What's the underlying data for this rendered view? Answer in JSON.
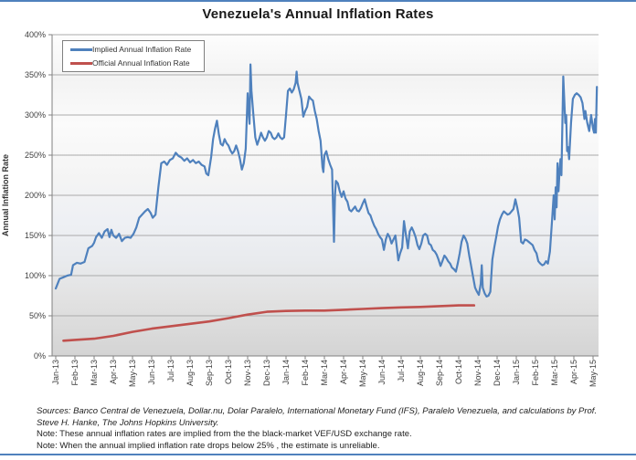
{
  "page": {
    "title": "Venezuela's Annual Inflation Rates"
  },
  "legend": {
    "items": [
      {
        "label": "Implied Annual Inflation Rate",
        "color": "#4f81bd"
      },
      {
        "label": "Official Annual Inflation Rate",
        "color": "#c0504d"
      }
    ]
  },
  "notes": {
    "sources": "Sources: Banco Central de Venezuela, Dollar.nu, Dolar Paralelo, International Monetary Fund (IFS), Paralelo Venezuela, and calculations by Prof. Steve H. Hanke, The Johns Hopkins University.",
    "note1": "Note: These annual inflation rates are implied from the the black-market VEF/USD exchange rate.",
    "note2": "Note: When the annual implied inflation rate drops below 25% , the estimate is unreliable."
  },
  "chart_data": {
    "type": "line",
    "title": "Venezuela's Annual Inflation Rates",
    "xlabel": "",
    "ylabel": "Annual Inflation Rate",
    "ylim": [
      0,
      400
    ],
    "yticks": [
      0,
      50,
      100,
      150,
      200,
      250,
      300,
      350,
      400
    ],
    "ytick_suffix": "%",
    "grid": "horizontal",
    "legend_position": "top-left-inside",
    "categories": [
      "Jan-13",
      "Feb-13",
      "Mar-13",
      "Apr-13",
      "May-13",
      "Jun-13",
      "Jul-13",
      "Aug-13",
      "Sep-13",
      "Oct-13",
      "Nov-13",
      "Dec-13",
      "Jan-14",
      "Feb-14",
      "Mar-14",
      "Apr-14",
      "May-14",
      "Jun-14",
      "Jul-14",
      "Aug-14",
      "Sep-14",
      "Oct-14",
      "Nov-14",
      "Dec-14",
      "Jan-15",
      "Feb-15",
      "Mar-15",
      "Apr-15",
      "May-15"
    ],
    "x_unit": "fractional months since Jan-13",
    "series": [
      {
        "name": "Implied Annual Inflation Rate",
        "color": "#4f81bd",
        "width": 2.2,
        "points": [
          [
            0,
            84
          ],
          [
            0.1,
            90
          ],
          [
            0.2,
            96
          ],
          [
            0.4,
            98
          ],
          [
            0.6,
            100
          ],
          [
            0.8,
            101
          ],
          [
            0.9,
            113
          ],
          [
            1.1,
            116
          ],
          [
            1.3,
            115
          ],
          [
            1.5,
            117
          ],
          [
            1.7,
            134
          ],
          [
            1.9,
            137
          ],
          [
            2.0,
            141
          ],
          [
            2.1,
            148
          ],
          [
            2.25,
            153
          ],
          [
            2.4,
            147
          ],
          [
            2.55,
            155
          ],
          [
            2.7,
            158
          ],
          [
            2.8,
            148
          ],
          [
            2.9,
            157
          ],
          [
            3.0,
            150
          ],
          [
            3.15,
            147
          ],
          [
            3.3,
            152
          ],
          [
            3.45,
            143
          ],
          [
            3.6,
            147
          ],
          [
            3.75,
            148
          ],
          [
            3.9,
            147
          ],
          [
            4.05,
            152
          ],
          [
            4.2,
            160
          ],
          [
            4.35,
            172
          ],
          [
            4.5,
            176
          ],
          [
            4.65,
            180
          ],
          [
            4.8,
            183
          ],
          [
            4.95,
            178
          ],
          [
            5.05,
            172
          ],
          [
            5.2,
            176
          ],
          [
            5.35,
            210
          ],
          [
            5.5,
            240
          ],
          [
            5.65,
            242
          ],
          [
            5.8,
            238
          ],
          [
            5.95,
            244
          ],
          [
            6.1,
            246
          ],
          [
            6.25,
            253
          ],
          [
            6.4,
            249
          ],
          [
            6.55,
            247
          ],
          [
            6.7,
            243
          ],
          [
            6.85,
            246
          ],
          [
            7.0,
            241
          ],
          [
            7.15,
            244
          ],
          [
            7.3,
            240
          ],
          [
            7.45,
            242
          ],
          [
            7.6,
            238
          ],
          [
            7.75,
            236
          ],
          [
            7.85,
            227
          ],
          [
            7.95,
            225
          ],
          [
            8.1,
            248
          ],
          [
            8.2,
            270
          ],
          [
            8.3,
            283
          ],
          [
            8.4,
            293
          ],
          [
            8.5,
            276
          ],
          [
            8.6,
            264
          ],
          [
            8.7,
            262
          ],
          [
            8.8,
            270
          ],
          [
            8.9,
            265
          ],
          [
            9.0,
            262
          ],
          [
            9.1,
            256
          ],
          [
            9.2,
            252
          ],
          [
            9.3,
            255
          ],
          [
            9.4,
            262
          ],
          [
            9.5,
            255
          ],
          [
            9.6,
            245
          ],
          [
            9.7,
            232
          ],
          [
            9.8,
            240
          ],
          [
            9.9,
            258
          ],
          [
            9.95,
            290
          ],
          [
            10.0,
            327
          ],
          [
            10.05,
            305
          ],
          [
            10.1,
            289
          ],
          [
            10.15,
            363
          ],
          [
            10.2,
            330
          ],
          [
            10.3,
            300
          ],
          [
            10.4,
            272
          ],
          [
            10.5,
            263
          ],
          [
            10.6,
            270
          ],
          [
            10.7,
            278
          ],
          [
            10.8,
            272
          ],
          [
            10.9,
            268
          ],
          [
            11.0,
            272
          ],
          [
            11.1,
            280
          ],
          [
            11.2,
            278
          ],
          [
            11.3,
            272
          ],
          [
            11.4,
            270
          ],
          [
            11.5,
            272
          ],
          [
            11.6,
            277
          ],
          [
            11.7,
            272
          ],
          [
            11.8,
            270
          ],
          [
            11.9,
            272
          ],
          [
            12.0,
            300
          ],
          [
            12.1,
            330
          ],
          [
            12.2,
            333
          ],
          [
            12.3,
            328
          ],
          [
            12.4,
            332
          ],
          [
            12.5,
            340
          ],
          [
            12.55,
            354
          ],
          [
            12.6,
            340
          ],
          [
            12.7,
            330
          ],
          [
            12.8,
            320
          ],
          [
            12.9,
            298
          ],
          [
            13.0,
            305
          ],
          [
            13.1,
            310
          ],
          [
            13.2,
            323
          ],
          [
            13.3,
            320
          ],
          [
            13.4,
            318
          ],
          [
            13.5,
            305
          ],
          [
            13.6,
            295
          ],
          [
            13.7,
            280
          ],
          [
            13.8,
            268
          ],
          [
            13.9,
            235
          ],
          [
            13.95,
            229
          ],
          [
            14.0,
            250
          ],
          [
            14.1,
            255
          ],
          [
            14.2,
            245
          ],
          [
            14.3,
            238
          ],
          [
            14.4,
            232
          ],
          [
            14.5,
            142
          ],
          [
            14.55,
            200
          ],
          [
            14.6,
            218
          ],
          [
            14.7,
            215
          ],
          [
            14.8,
            205
          ],
          [
            14.9,
            198
          ],
          [
            15.0,
            205
          ],
          [
            15.1,
            196
          ],
          [
            15.2,
            192
          ],
          [
            15.3,
            182
          ],
          [
            15.4,
            180
          ],
          [
            15.5,
            183
          ],
          [
            15.6,
            186
          ],
          [
            15.7,
            181
          ],
          [
            15.8,
            180
          ],
          [
            15.9,
            184
          ],
          [
            16.0,
            190
          ],
          [
            16.1,
            195
          ],
          [
            16.2,
            186
          ],
          [
            16.3,
            178
          ],
          [
            16.4,
            175
          ],
          [
            16.5,
            168
          ],
          [
            16.6,
            162
          ],
          [
            16.7,
            158
          ],
          [
            16.8,
            152
          ],
          [
            16.9,
            148
          ],
          [
            17.0,
            145
          ],
          [
            17.1,
            132
          ],
          [
            17.2,
            145
          ],
          [
            17.3,
            152
          ],
          [
            17.4,
            148
          ],
          [
            17.5,
            140
          ],
          [
            17.6,
            145
          ],
          [
            17.7,
            150
          ],
          [
            17.8,
            130
          ],
          [
            17.85,
            119
          ],
          [
            17.95,
            128
          ],
          [
            18.05,
            135
          ],
          [
            18.15,
            168
          ],
          [
            18.25,
            150
          ],
          [
            18.35,
            134
          ],
          [
            18.45,
            155
          ],
          [
            18.55,
            160
          ],
          [
            18.65,
            155
          ],
          [
            18.75,
            148
          ],
          [
            18.85,
            138
          ],
          [
            18.95,
            133
          ],
          [
            19.05,
            140
          ],
          [
            19.15,
            150
          ],
          [
            19.25,
            152
          ],
          [
            19.35,
            150
          ],
          [
            19.45,
            140
          ],
          [
            19.55,
            138
          ],
          [
            19.65,
            132
          ],
          [
            19.75,
            130
          ],
          [
            19.85,
            126
          ],
          [
            19.95,
            120
          ],
          [
            20.05,
            112
          ],
          [
            20.15,
            118
          ],
          [
            20.25,
            125
          ],
          [
            20.35,
            122
          ],
          [
            20.45,
            118
          ],
          [
            20.55,
            115
          ],
          [
            20.65,
            110
          ],
          [
            20.75,
            108
          ],
          [
            20.85,
            105
          ],
          [
            20.95,
            115
          ],
          [
            21.05,
            128
          ],
          [
            21.15,
            142
          ],
          [
            21.25,
            150
          ],
          [
            21.35,
            146
          ],
          [
            21.45,
            140
          ],
          [
            21.55,
            125
          ],
          [
            21.65,
            112
          ],
          [
            21.75,
            98
          ],
          [
            21.85,
            85
          ],
          [
            21.95,
            80
          ],
          [
            22.05,
            76
          ],
          [
            22.15,
            90
          ],
          [
            22.2,
            113
          ],
          [
            22.25,
            85
          ],
          [
            22.35,
            78
          ],
          [
            22.45,
            74
          ],
          [
            22.55,
            75
          ],
          [
            22.65,
            80
          ],
          [
            22.75,
            120
          ],
          [
            22.85,
            135
          ],
          [
            22.95,
            148
          ],
          [
            23.05,
            161
          ],
          [
            23.15,
            170
          ],
          [
            23.25,
            176
          ],
          [
            23.35,
            180
          ],
          [
            23.45,
            178
          ],
          [
            23.55,
            176
          ],
          [
            23.65,
            177
          ],
          [
            23.75,
            180
          ],
          [
            23.85,
            183
          ],
          [
            23.95,
            195
          ],
          [
            24.05,
            185
          ],
          [
            24.15,
            172
          ],
          [
            24.25,
            142
          ],
          [
            24.35,
            140
          ],
          [
            24.45,
            145
          ],
          [
            24.55,
            144
          ],
          [
            24.65,
            142
          ],
          [
            24.75,
            140
          ],
          [
            24.85,
            138
          ],
          [
            24.95,
            132
          ],
          [
            25.05,
            128
          ],
          [
            25.15,
            118
          ],
          [
            25.25,
            115
          ],
          [
            25.35,
            113
          ],
          [
            25.45,
            114
          ],
          [
            25.55,
            118
          ],
          [
            25.65,
            115
          ],
          [
            25.75,
            130
          ],
          [
            25.85,
            165
          ],
          [
            25.95,
            200
          ],
          [
            26.0,
            170
          ],
          [
            26.05,
            210
          ],
          [
            26.1,
            185
          ],
          [
            26.15,
            240
          ],
          [
            26.2,
            205
          ],
          [
            26.25,
            230
          ],
          [
            26.3,
            245
          ],
          [
            26.35,
            225
          ],
          [
            26.45,
            348
          ],
          [
            26.55,
            290
          ],
          [
            26.6,
            300
          ],
          [
            26.65,
            255
          ],
          [
            26.7,
            260
          ],
          [
            26.75,
            245
          ],
          [
            26.85,
            290
          ],
          [
            26.95,
            320
          ],
          [
            27.05,
            325
          ],
          [
            27.15,
            327
          ],
          [
            27.25,
            325
          ],
          [
            27.35,
            322
          ],
          [
            27.45,
            315
          ],
          [
            27.55,
            295
          ],
          [
            27.6,
            305
          ],
          [
            27.7,
            290
          ],
          [
            27.8,
            280
          ],
          [
            27.9,
            300
          ],
          [
            28.0,
            283
          ],
          [
            28.05,
            278
          ],
          [
            28.1,
            295
          ],
          [
            28.15,
            278
          ],
          [
            28.2,
            335
          ]
        ]
      },
      {
        "name": "Official Annual Inflation Rate",
        "color": "#c0504d",
        "width": 2.6,
        "points": [
          [
            0.4,
            19
          ],
          [
            1,
            20
          ],
          [
            2,
            21.5
          ],
          [
            3,
            25
          ],
          [
            4,
            30
          ],
          [
            5,
            34
          ],
          [
            6,
            37
          ],
          [
            7,
            40
          ],
          [
            8,
            43
          ],
          [
            9,
            47
          ],
          [
            10,
            51.5
          ],
          [
            11,
            55
          ],
          [
            12,
            56
          ],
          [
            13,
            56.5
          ],
          [
            14,
            56.5
          ],
          [
            15,
            57.5
          ],
          [
            16,
            58.5
          ],
          [
            17,
            59.5
          ],
          [
            18,
            60.5
          ],
          [
            19,
            61
          ],
          [
            20,
            62
          ],
          [
            21,
            63
          ],
          [
            21.8,
            63
          ]
        ]
      }
    ]
  }
}
